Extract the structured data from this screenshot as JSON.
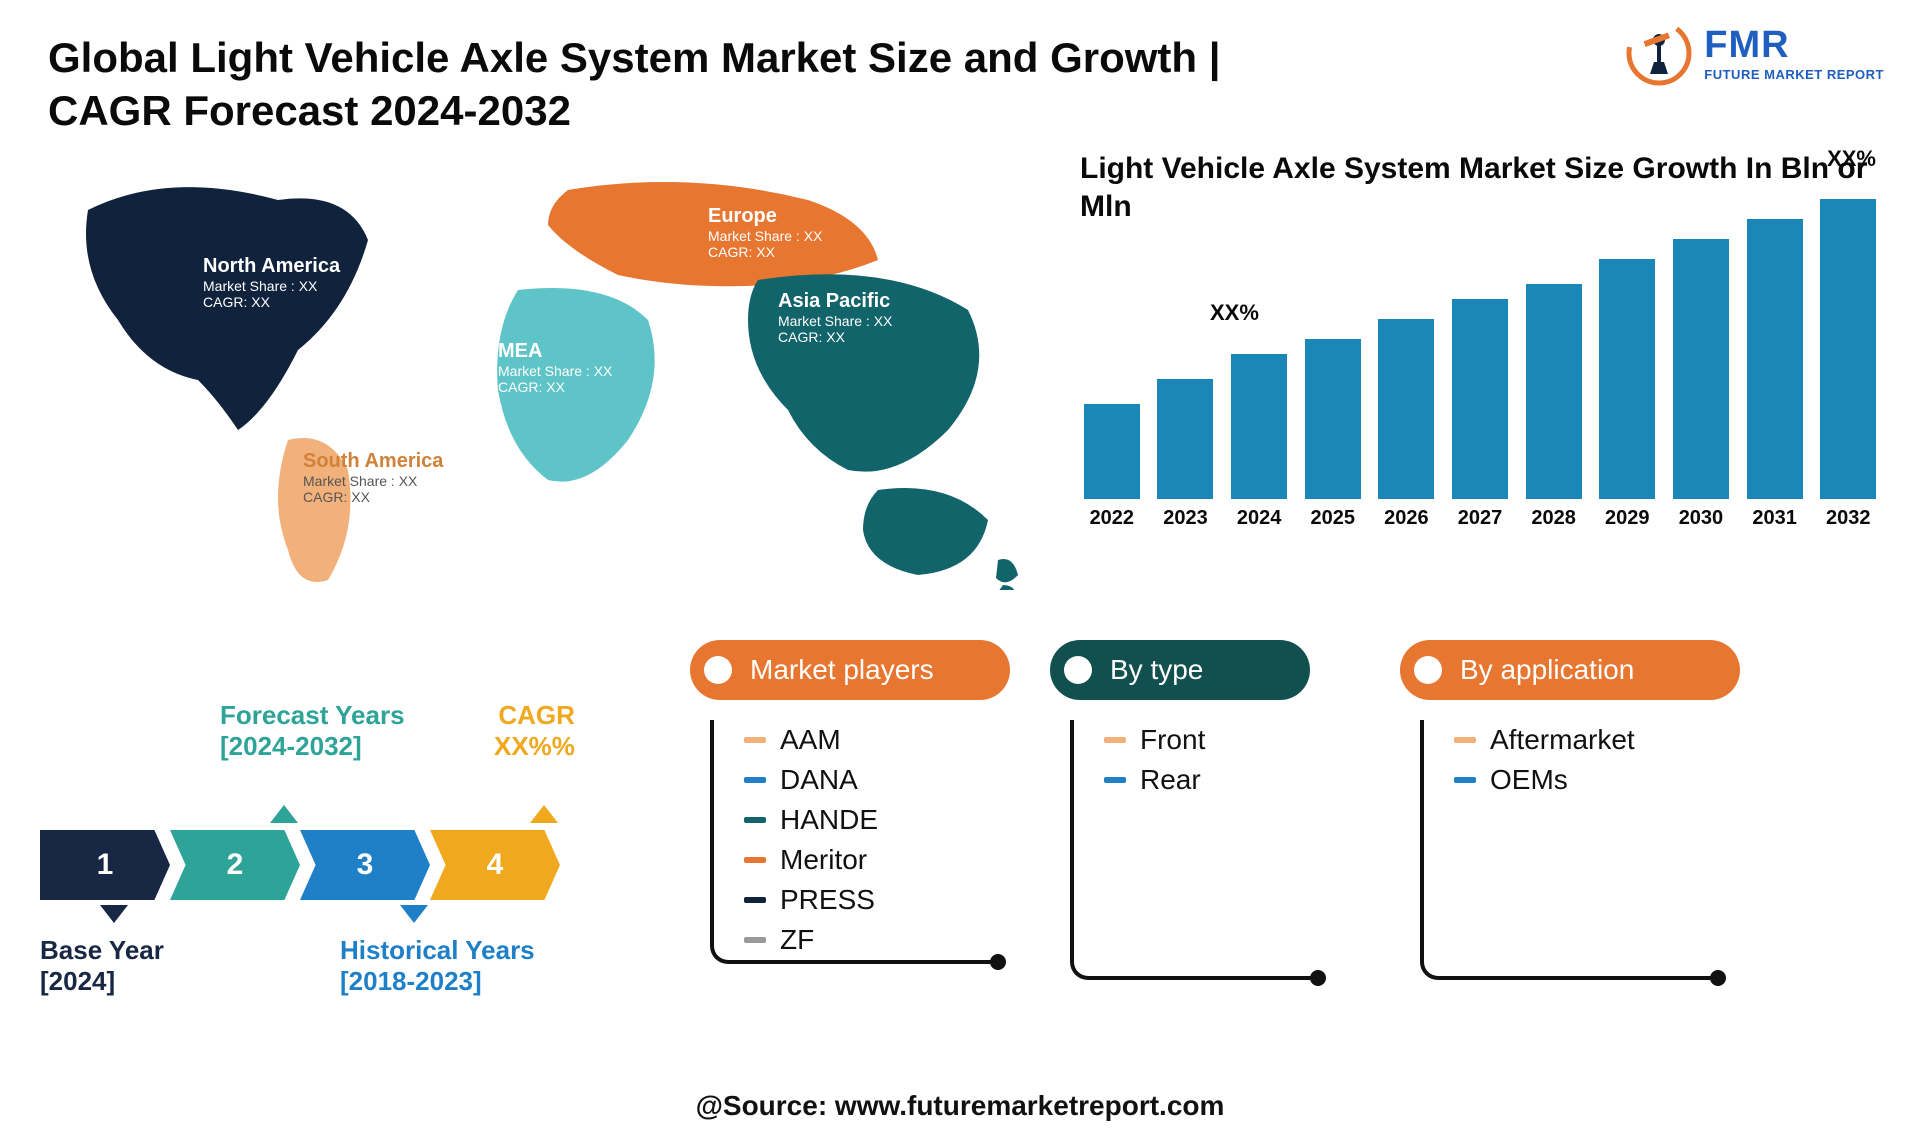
{
  "title": "Global Light Vehicle Axle System Market Size and Growth | CAGR Forecast 2024-2032",
  "logo": {
    "fmr": "FMR",
    "sub": "FUTURE MARKET REPORT"
  },
  "map": {
    "regions": [
      {
        "name": "North America",
        "share": "Market Share : XX",
        "cagr": "CAGR: XX",
        "color": "#10223c"
      },
      {
        "name": "South America",
        "share": "Market Share : XX",
        "cagr": "CAGR: XX",
        "color": "#f2b07a"
      },
      {
        "name": "Europe",
        "share": "Market Share : XX",
        "cagr": "CAGR: XX",
        "color": "#e77631"
      },
      {
        "name": "MEA",
        "share": "Market Share : XX",
        "cagr": "CAGR: XX",
        "color": "#5ec4c7"
      },
      {
        "name": "Asia Pacific",
        "share": "Market Share : XX",
        "cagr": "CAGR: XX",
        "color": "#12646b"
      }
    ]
  },
  "chart": {
    "type": "bar",
    "title": "Light Vehicle Axle System Market Size Growth In Bln or Mln",
    "years": [
      "2022",
      "2023",
      "2024",
      "2025",
      "2026",
      "2027",
      "2028",
      "2029",
      "2030",
      "2031",
      "2032"
    ],
    "values": [
      95,
      120,
      145,
      160,
      180,
      200,
      215,
      240,
      260,
      280,
      300
    ],
    "bar_color": "#1b87b9",
    "pct_first": "XX%",
    "pct_last": "XX%",
    "label_fontsize": 20,
    "title_fontsize": 30
  },
  "timeline": {
    "items": [
      {
        "n": "1",
        "color": "#182744"
      },
      {
        "n": "2",
        "color": "#2ea398"
      },
      {
        "n": "3",
        "color": "#1f7fc7"
      },
      {
        "n": "4",
        "color": "#f0a81e"
      }
    ],
    "base": {
      "label": "Base Year",
      "value": "[2024]",
      "color": "#182744"
    },
    "forecast": {
      "label": "Forecast Years",
      "value": "[2024-2032]",
      "color": "#2ea398"
    },
    "historical": {
      "label": "Historical Years",
      "value": "[2018-2023]",
      "color": "#1f7fc7"
    },
    "cagr": {
      "label": "CAGR",
      "value": "XX%%",
      "color": "#f0a81e"
    }
  },
  "categories": {
    "market_players": {
      "title": "Market players",
      "pill_color": "#e77631",
      "items": [
        {
          "label": "AAM",
          "marker": "#f2b07a"
        },
        {
          "label": "DANA",
          "marker": "#1f7fc7"
        },
        {
          "label": "HANDE",
          "marker": "#12646b"
        },
        {
          "label": "Meritor",
          "marker": "#e77631"
        },
        {
          "label": "PRESS",
          "marker": "#10223c"
        },
        {
          "label": "ZF",
          "marker": "#999999"
        }
      ]
    },
    "by_type": {
      "title": "By type",
      "pill_color": "#12504f",
      "items": [
        {
          "label": "Front",
          "marker": "#f2b07a"
        },
        {
          "label": "Rear",
          "marker": "#1f7fc7"
        }
      ]
    },
    "by_application": {
      "title": "By application",
      "pill_color": "#e77631",
      "items": [
        {
          "label": "Aftermarket",
          "marker": "#f2b07a"
        },
        {
          "label": "OEMs",
          "marker": "#1f7fc7"
        }
      ]
    }
  },
  "source": "@Source: www.futuremarketreport.com"
}
